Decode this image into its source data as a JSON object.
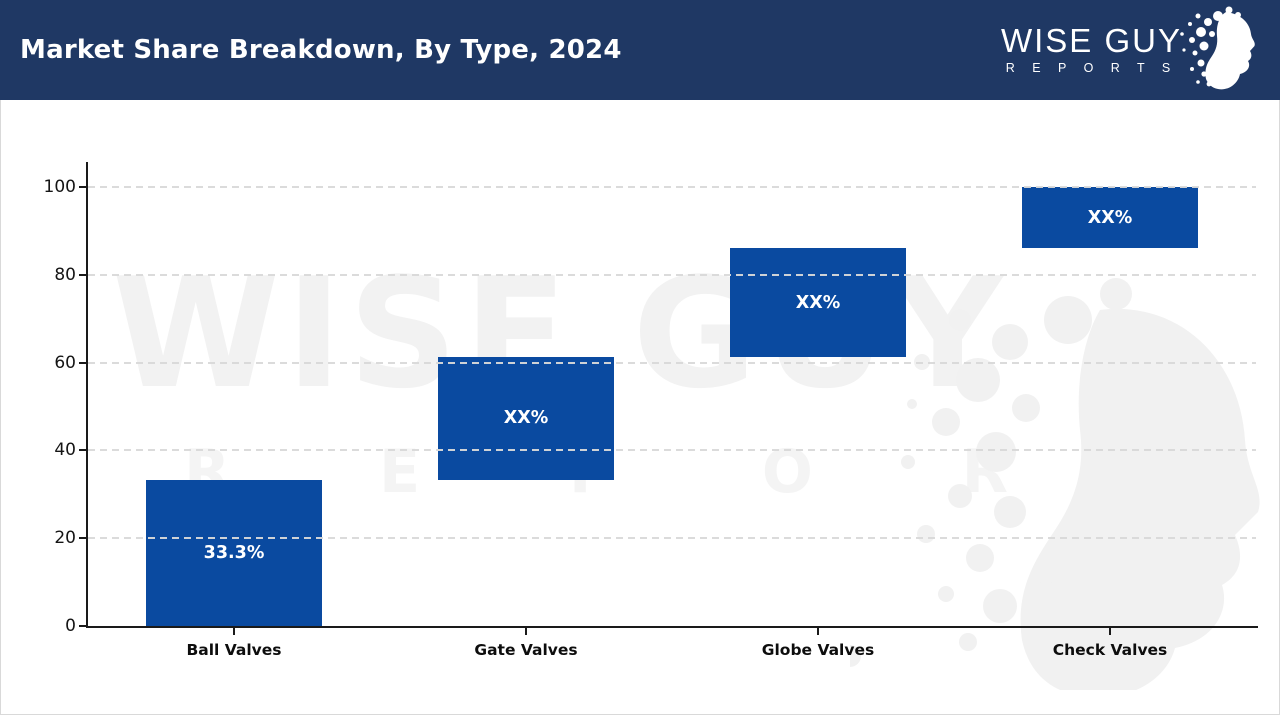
{
  "header": {
    "title": "Market Share Breakdown, By Type, 2024",
    "background": "#1f3864",
    "logo": {
      "line1": "WISE GUY",
      "line2": "R E P O R T S",
      "icon": "dotted-head-profile"
    }
  },
  "watermark": {
    "line1": "WISE GUY",
    "line2": "R E P O R T S"
  },
  "chart_data": {
    "type": "bar",
    "subtype": "waterfall-floating-bars",
    "title": "Market Share Breakdown, By Type, 2024",
    "categories": [
      "Ball Valves",
      "Gate Valves",
      "Globe Valves",
      "Check Valves"
    ],
    "segments": [
      {
        "category": "Ball Valves",
        "start": 0,
        "end": 33.3,
        "label": "33.3%"
      },
      {
        "category": "Gate Valves",
        "start": 33.3,
        "end": 61.3,
        "label": "XX%"
      },
      {
        "category": "Globe Valves",
        "start": 61.3,
        "end": 86,
        "label": "XX%"
      },
      {
        "category": "Check Valves",
        "start": 86,
        "end": 100,
        "label": "XX%"
      }
    ],
    "y_ticks": [
      0,
      20,
      40,
      60,
      80,
      100
    ],
    "ylim": [
      0,
      105
    ],
    "xlabel": "",
    "ylabel": "",
    "grid": "horizontal-dashed",
    "gridline_color": "#d9d9d9",
    "bar_color": "#0a4aa0",
    "bar_label_color": "#ffffff",
    "axis_color": "#1a1a1a",
    "legend": "none"
  }
}
